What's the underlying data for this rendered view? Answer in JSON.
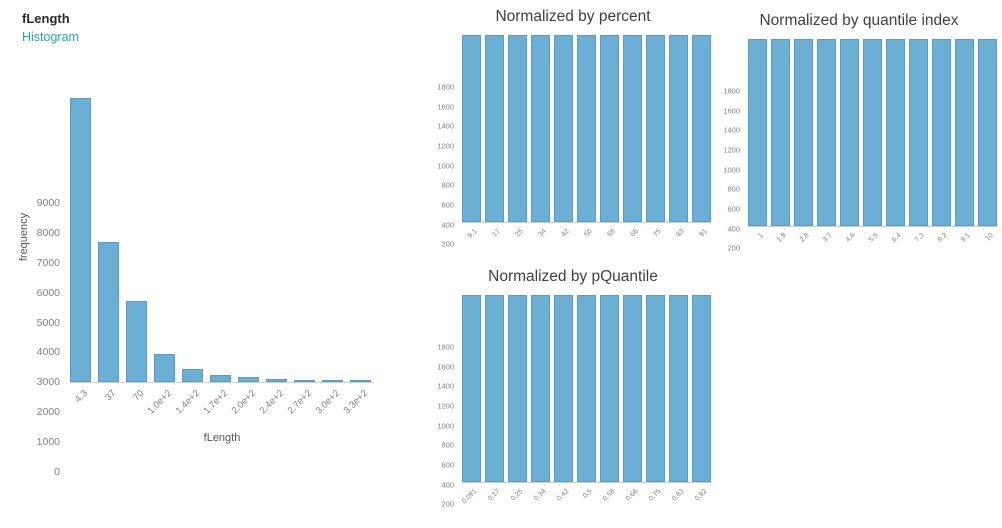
{
  "header": {
    "title": "fLength",
    "subtitle": "Histogram"
  },
  "colors": {
    "bar_fill": "#6cafd4",
    "bar_border": "#5b9cc4",
    "subtitle_link": "#2aa0c4",
    "axis_text": "#808080"
  },
  "chart_data": [
    {
      "type": "bar",
      "title": "",
      "xlabel": "fLength",
      "ylabel": "frequency",
      "categories": [
        "4.3",
        "37",
        "70",
        "1.0e+2",
        "1.4e+2",
        "1.7e+2",
        "2.0e+2",
        "2.4e+2",
        "2.7e+2",
        "3.0e+2",
        "3.3e+2"
      ],
      "values": [
        9500,
        4700,
        2700,
        950,
        450,
        250,
        160,
        90,
        60,
        40,
        30
      ],
      "yticks": [
        0,
        1000,
        2000,
        3000,
        4000,
        5000,
        6000,
        7000,
        8000,
        9000
      ],
      "ylim": [
        0,
        9700
      ],
      "ymax": 9700,
      "grid": false,
      "legend": "none"
    },
    {
      "type": "bar",
      "title": "Normalized by percent",
      "xlabel": "",
      "ylabel": "",
      "categories": [
        "9.1",
        "17",
        "25",
        "34",
        "42",
        "50",
        "58",
        "66",
        "75",
        "83",
        "91"
      ],
      "values": [
        1902,
        1902,
        1902,
        1902,
        1902,
        1902,
        1902,
        1902,
        1902,
        1902,
        1902
      ],
      "yticks": [
        200,
        400,
        600,
        800,
        1000,
        1200,
        1400,
        1600,
        1800
      ],
      "ylim": [
        0,
        1910
      ],
      "ymax": 1910,
      "grid": false,
      "legend": "none"
    },
    {
      "type": "bar",
      "title": "Normalized by quantile index",
      "xlabel": "",
      "ylabel": "",
      "categories": [
        "1",
        "1.9",
        "2.8",
        "3.7",
        "4.6",
        "5.5",
        "6.4",
        "7.3",
        "8.2",
        "9.1",
        "10"
      ],
      "values": [
        1902,
        1902,
        1902,
        1902,
        1902,
        1902,
        1902,
        1902,
        1902,
        1902,
        1902
      ],
      "yticks": [
        200,
        400,
        600,
        800,
        1000,
        1200,
        1400,
        1600,
        1800
      ],
      "ylim": [
        0,
        1910
      ],
      "ymax": 1910,
      "grid": false,
      "legend": "none"
    },
    {
      "type": "bar",
      "title": "Normalized by pQuantile",
      "xlabel": "",
      "ylabel": "",
      "categories": [
        "0.091",
        "0.17",
        "0.25",
        "0.34",
        "0.42",
        "0.5",
        "0.58",
        "0.66",
        "0.75",
        "0.83",
        "0.92"
      ],
      "values": [
        1902,
        1902,
        1902,
        1902,
        1902,
        1902,
        1902,
        1902,
        1902,
        1902,
        1902
      ],
      "yticks": [
        200,
        400,
        600,
        800,
        1000,
        1200,
        1400,
        1600,
        1800
      ],
      "ylim": [
        0,
        1910
      ],
      "ymax": 1910,
      "grid": false,
      "legend": "none"
    }
  ]
}
